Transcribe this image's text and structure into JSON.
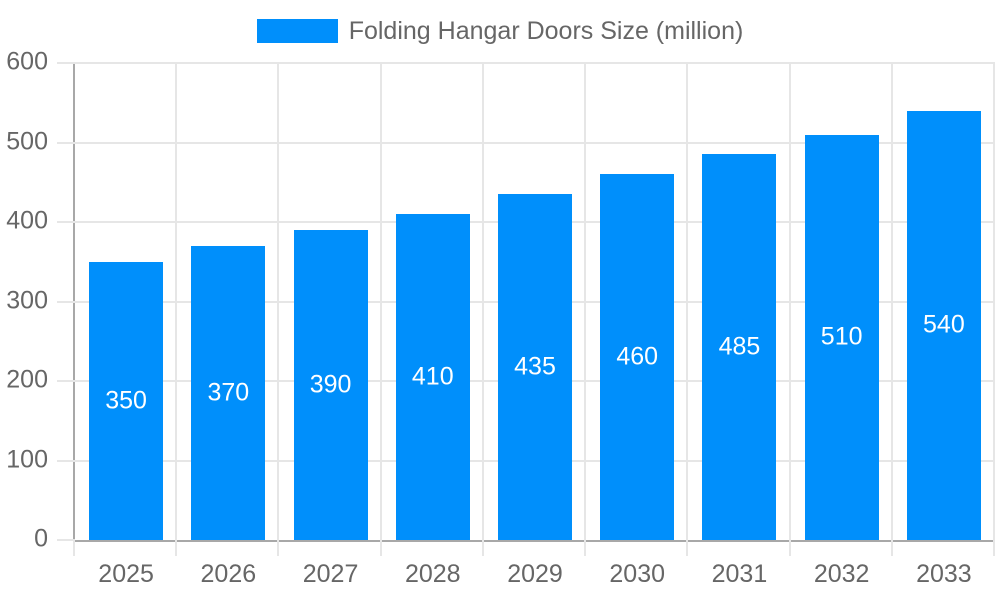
{
  "chart_data": {
    "type": "bar",
    "title": "Folding Hangar Doors Size (million)",
    "legend": {
      "label": "Folding Hangar Doors Size (million)",
      "position": "top"
    },
    "categories": [
      "2025",
      "2026",
      "2027",
      "2028",
      "2029",
      "2030",
      "2031",
      "2032",
      "2033"
    ],
    "series": [
      {
        "name": "Folding Hangar Doors Size (million)",
        "values": [
          350,
          370,
          390,
          410,
          435,
          460,
          485,
          510,
          540
        ]
      }
    ],
    "xlabel": "",
    "ylabel": "",
    "ylim": [
      0,
      600
    ],
    "yticks": [
      0,
      100,
      200,
      300,
      400,
      500,
      600
    ],
    "grid": true,
    "show_data_labels": true,
    "colors": {
      "bar": "#008FFB",
      "grid": "#e6e6e6",
      "axis_line": "#a8a8a8",
      "tick_text": "#666666",
      "legend_text": "#666666",
      "data_label_text": "#ffffff"
    }
  }
}
